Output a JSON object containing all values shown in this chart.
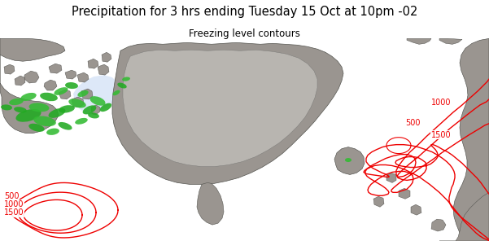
{
  "title": "Precipitation for 3 hrs ending Tuesday 15 Oct at 10pm -02",
  "subtitle": "Freezing level contours",
  "title_fontsize": 10.5,
  "subtitle_fontsize": 8.5,
  "ocean_color": "#ccd8ef",
  "ocean_light_color": "#dde6f5",
  "land_color": "#9a9590",
  "land_dark_color": "#7a7570",
  "ice_color": "#b8b5b0",
  "green1": "#22aa22",
  "green2": "#33bb33",
  "green3": "#44cc44",
  "red_contour": "#ee0000",
  "white": "#ffffff",
  "bg_white": "#ffffff"
}
